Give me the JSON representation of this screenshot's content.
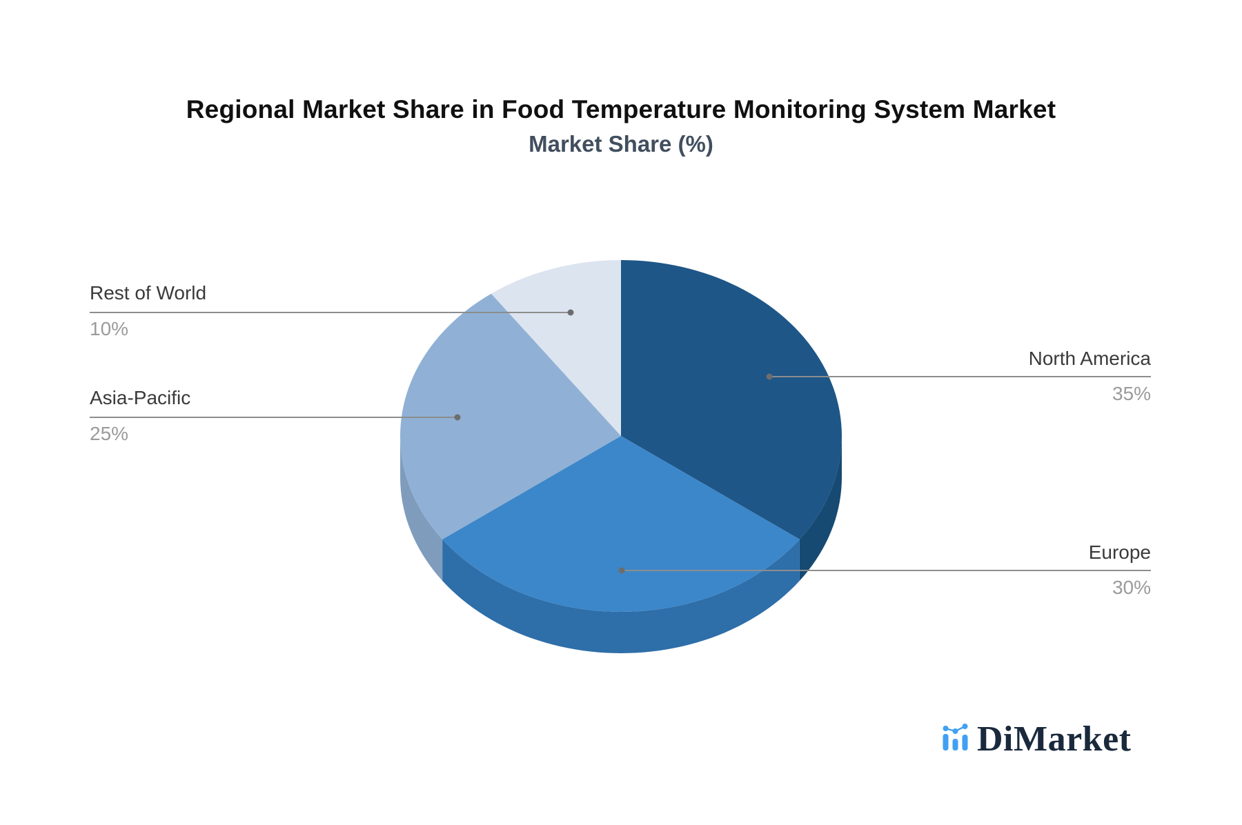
{
  "chart_data": {
    "type": "pie",
    "title": "Regional Market Share in Food Temperature Monitoring System Market",
    "subtitle": "Market Share (%)",
    "unit": "%",
    "effect": "3d",
    "start_angle": "12-oclock-clockwise",
    "legend_position": "none (leader-line labels)",
    "slices": [
      {
        "label": "North America",
        "value": 35,
        "pct_label": "35%",
        "color": "#1e5687",
        "side_color": "#174a72",
        "label_side": "right"
      },
      {
        "label": "Europe",
        "value": 30,
        "pct_label": "30%",
        "color": "#3c87c9",
        "side_color": "#2e6ea9",
        "label_side": "right"
      },
      {
        "label": "Asia-Pacific",
        "value": 25,
        "pct_label": "25%",
        "color": "#90b1d5",
        "side_color": "#7f9cbc",
        "label_side": "left"
      },
      {
        "label": "Rest of World",
        "value": 10,
        "pct_label": "10%",
        "color": "#dce4f0",
        "side_color": "#c2cddd",
        "label_side": "left"
      }
    ],
    "style": {
      "leader_line_color": "#8d8d8d",
      "leader_dot_color": "#6d6d6d",
      "label_color": "#3a3a3a",
      "pct_color": "#9b9b9b",
      "title_color": "#101010",
      "subtitle_color": "#414e5e",
      "background": "#ffffff"
    }
  },
  "logo": {
    "text": "DiMarket",
    "icon": "bar-chart-trend-icon",
    "accent": "#41a0f2",
    "text_color": "#1a293c"
  }
}
